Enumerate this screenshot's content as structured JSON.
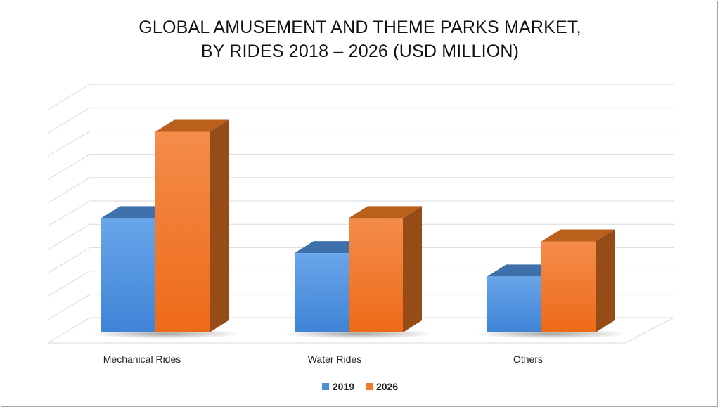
{
  "chart_data": {
    "type": "bar",
    "title_line1": "GLOBAL AMUSEMENT AND THEME PARKS MARKET,",
    "title_line2": "BY RIDES 2018 – 2026 (USD MILLION)",
    "categories": [
      "Mechanical Rides",
      "Water Rides",
      "Others"
    ],
    "series": [
      {
        "name": "2019",
        "values": [
          4.9,
          3.4,
          2.4
        ],
        "color": "#4f8fdb"
      },
      {
        "name": "2026",
        "values": [
          8.6,
          4.9,
          3.9
        ],
        "color": "#f07a25"
      }
    ],
    "ylim": [
      0,
      10
    ],
    "grid": true,
    "legend": "bottom-center",
    "xlabel": "",
    "ylabel": ""
  }
}
